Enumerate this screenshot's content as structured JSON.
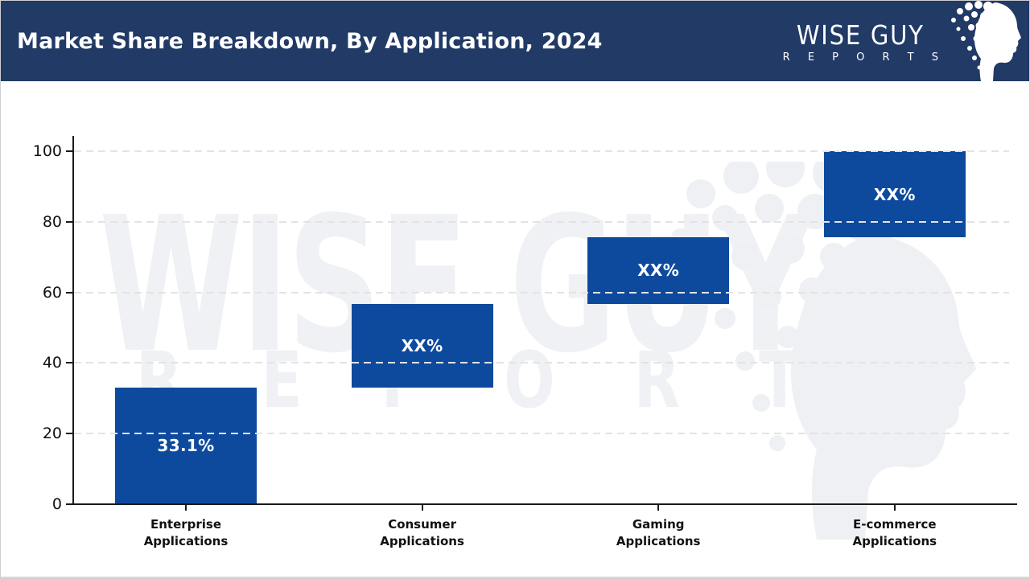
{
  "header": {
    "title": "Market Share Breakdown, By Application, 2024",
    "background_color": "#213a66",
    "logo": {
      "line1": "WISE GUY",
      "line2": "R E P O R T S"
    }
  },
  "watermark": {
    "line1": "WISE GUY",
    "line2": "R E P O R T S"
  },
  "chart_data": {
    "type": "bar",
    "subtype": "floating-waterfall",
    "title": "Market Share Breakdown, By Application, 2024",
    "xlabel": "",
    "ylabel": "",
    "ylim": [
      0,
      100
    ],
    "yticks": [
      0,
      20,
      40,
      60,
      80,
      100
    ],
    "grid": "horizontal-dashed-above-bars",
    "bar_color": "#0d4a9e",
    "bar_label_color": "#ffffff",
    "categories": [
      "Enterprise Applications",
      "Consumer Applications",
      "Gaming Applications",
      "E-commerce Applications"
    ],
    "bars": [
      {
        "category": "Enterprise Applications",
        "start": 0,
        "end": 33.1,
        "label": "33.1%"
      },
      {
        "category": "Consumer Applications",
        "start": 33.1,
        "end": 56.8,
        "label": "XX%"
      },
      {
        "category": "Gaming Applications",
        "start": 56.8,
        "end": 75.6,
        "label": "XX%"
      },
      {
        "category": "E-commerce Applications",
        "start": 75.6,
        "end": 100,
        "label": "XX%"
      }
    ]
  }
}
